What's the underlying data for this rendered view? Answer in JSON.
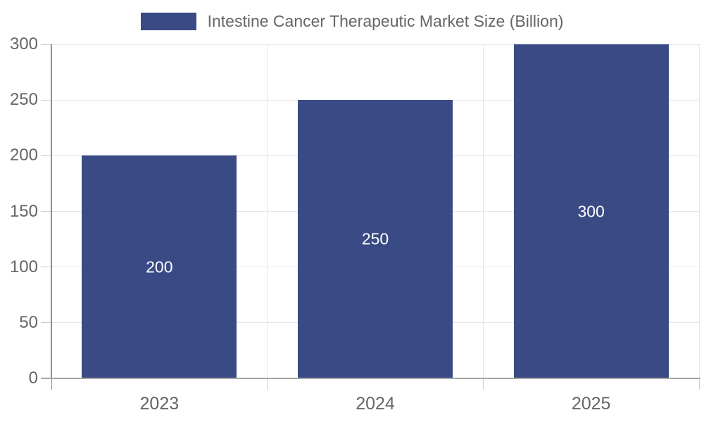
{
  "chart_data": {
    "type": "bar",
    "title": "Intestine Cancer Therapeutic Market Size (Billion)",
    "legend": {
      "position": "top",
      "label": "Intestine Cancer Therapeutic Market Size (Billion)"
    },
    "categories": [
      "2023",
      "2024",
      "2025"
    ],
    "series": [
      {
        "name": "Intestine Cancer Therapeutic Market Size (Billion)",
        "values": [
          200,
          250,
          300
        ]
      }
    ],
    "data_labels": [
      "200",
      "250",
      "300"
    ],
    "xlabel": "",
    "ylabel": "",
    "ylim": [
      0,
      300
    ],
    "yticks": [
      0,
      50,
      100,
      150,
      200,
      250,
      300
    ],
    "grid": true,
    "colors": {
      "bar": "#3a4a85",
      "bar_label_text": "#ffffff",
      "axis_text": "#666666",
      "legend_text": "#666666",
      "gridline": "#e6e6e6",
      "y_axis_line": "#8f8f8f",
      "x_axis_line": "#a6a6a6",
      "tick": "#cccccc",
      "background": "#ffffff"
    }
  }
}
